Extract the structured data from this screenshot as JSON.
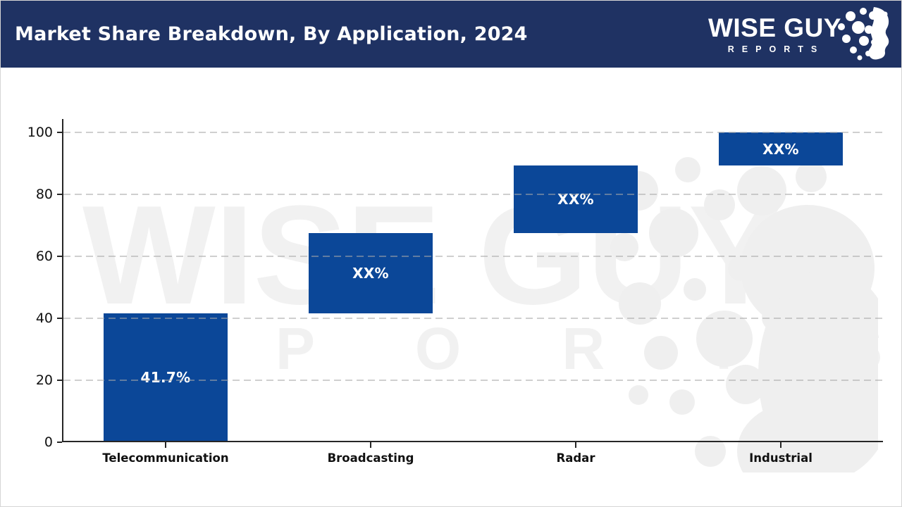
{
  "header": {
    "title": "Market Share Breakdown, By Application, 2024",
    "logo": {
      "line1": "WISE GUY",
      "line2": "REPORTS"
    }
  },
  "watermark": {
    "line1": "WISE GUY",
    "line2": "P O R T S"
  },
  "colors": {
    "header_bg": "#1f3263",
    "bar_blue": "#0b4798",
    "watermark_gray": "#f1f1f1",
    "axis_black": "#262626"
  },
  "chart_data": {
    "type": "bar",
    "subtype": "waterfall",
    "title": "Market Share Breakdown, By Application, 2024",
    "categories": [
      "Telecommunication",
      "Broadcasting",
      "Radar",
      "Industrial"
    ],
    "segments": [
      {
        "category": "Telecommunication",
        "start": 0,
        "end": 41.7,
        "label": "41.7%"
      },
      {
        "category": "Broadcasting",
        "start": 41.7,
        "end": 67.5,
        "label": "XX%"
      },
      {
        "category": "Radar",
        "start": 67.5,
        "end": 89.3,
        "label": "XX%"
      },
      {
        "category": "Industrial",
        "start": 89.3,
        "end": 100,
        "label": "XX%"
      }
    ],
    "xlabel": "",
    "ylabel": "",
    "ylim": [
      0,
      100
    ],
    "yticks": [
      0,
      20,
      40,
      60,
      80,
      100
    ],
    "bar_color": "#0b4798",
    "grid": true,
    "grid_style": "dashed",
    "legend_position": "none"
  }
}
